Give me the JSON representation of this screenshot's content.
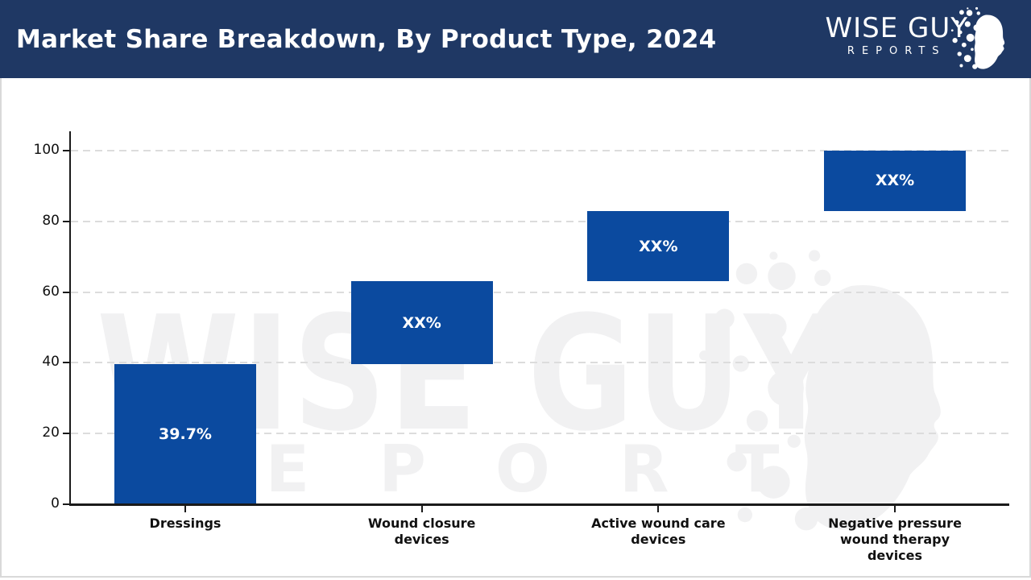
{
  "header": {
    "title": "Market Share Breakdown, By Product Type, 2024",
    "logo": {
      "name": "WISE GUY",
      "subname": "REPORTS"
    }
  },
  "watermark": {
    "line1": "WISE GUY",
    "line2": "REPORTS"
  },
  "colors": {
    "header_bg": "#1f3864",
    "bar": "#0b4a9f",
    "bar_label_text": "#ffffff",
    "grid": "#dcdcdc",
    "axis": "#1a1a1a",
    "watermark": "#f1f1f2",
    "panel_border": "#d9d9d9"
  },
  "chart_data": {
    "type": "bar",
    "subtype": "waterfall",
    "title": "Market Share Breakdown, By Product Type, 2024",
    "categories": [
      "Dressings",
      "Wound closure\ndevices",
      "Active wound care\ndevices",
      "Negative pressure\nwound therapy\ndevices"
    ],
    "segments": [
      {
        "category": "Dressings",
        "start": 0,
        "end": 39.7,
        "label": "39.7%"
      },
      {
        "category": "Wound closure devices",
        "start": 39.7,
        "end": 63,
        "label": "XX%"
      },
      {
        "category": "Active wound care devices",
        "start": 63,
        "end": 83,
        "label": "XX%"
      },
      {
        "category": "Negative pressure wound therapy devices",
        "start": 83,
        "end": 100,
        "label": "XX%"
      }
    ],
    "yticks": [
      0,
      20,
      40,
      60,
      80,
      100
    ],
    "ylim": [
      0,
      100
    ],
    "xlabel": "",
    "ylabel": "",
    "grid": "horizontal-dashed",
    "legend": null,
    "bar_color": "#0b4a9f"
  }
}
